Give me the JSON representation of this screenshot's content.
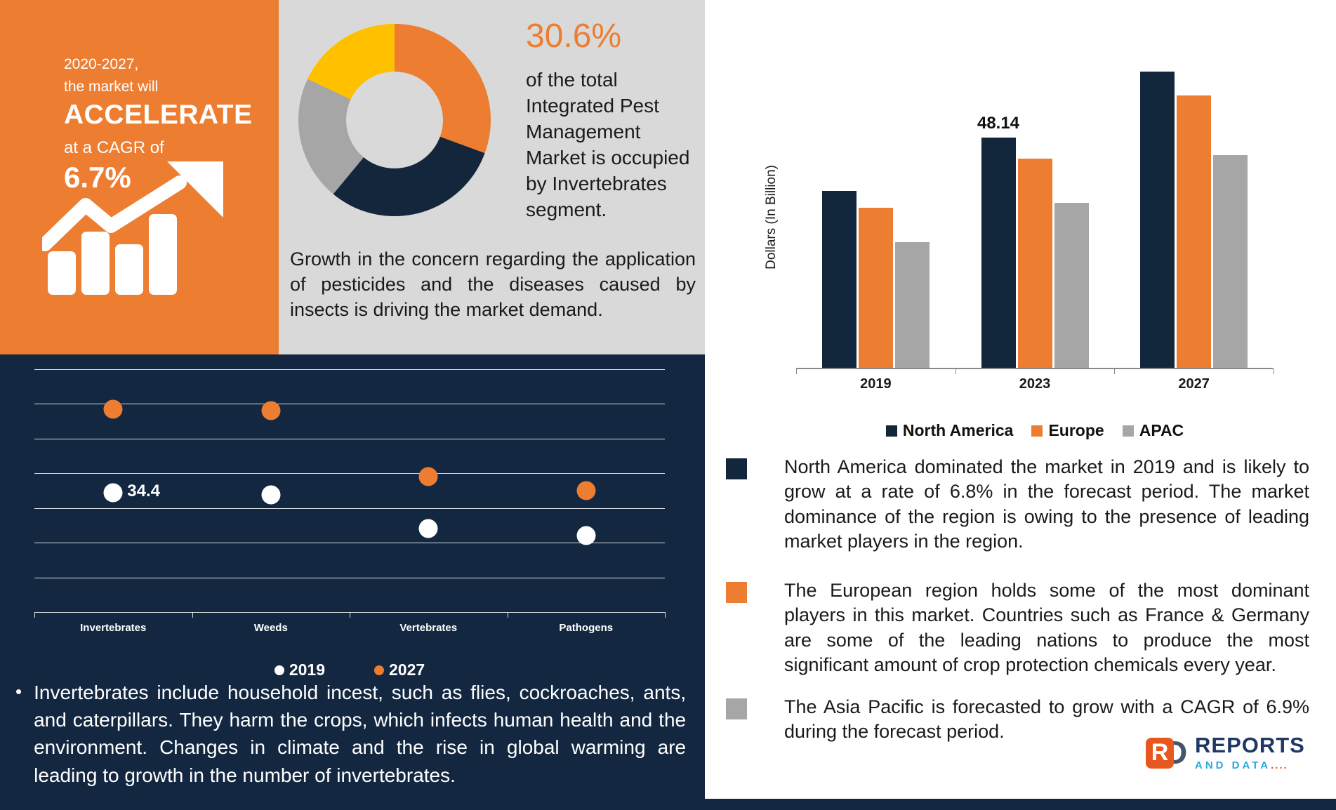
{
  "colors": {
    "orange": "#ED7D31",
    "navy": "#132741",
    "bar_navy": "#12263C",
    "gray": "#A6A6A6",
    "yellow": "#FFC000",
    "panel_gray": "#D9D9D9",
    "white": "#FFFFFF"
  },
  "accelerate_panel": {
    "period": "2020-2027,",
    "line2": "the market will",
    "headline": "ACCELERATE",
    "line4": "at a CAGR of",
    "cagr": "6.7%"
  },
  "donut_panel": {
    "stat": "30.6%",
    "caption": "of the total Integrated Pest Management Market is occupied by Invertebrates segment.",
    "paragraph": "Growth in the concern regarding the application of pesticides and the diseases caused by insects is driving the market demand."
  },
  "dot_panel": {
    "bullet_marker": "•",
    "bullet": "Invertebrates include household incest, such as flies, cockroaches, ants, and caterpillars. They harm the crops, which infects human health and the environment. Changes in climate and the rise in global warming are leading to growth in the number of invertebrates."
  },
  "insights": [
    {
      "color": "#12263C",
      "text": "North America dominated the market in 2019 and is likely to grow at a rate of 6.8% in the forecast period. The market dominance of the region is owing to the presence of leading market players in the region."
    },
    {
      "color": "#ED7D31",
      "text": "The European region holds some of the most dominant players in this market. Countries such as France & Germany are some of the leading nations to produce the most significant amount of crop protection chemicals every year."
    },
    {
      "color": "#A6A6A6",
      "text": "The Asia Pacific is forecasted to grow with a CAGR of 6.9% during the forecast period."
    }
  ],
  "logo": {
    "mark_r": "R",
    "mark_d": "D",
    "name": "REPORTS",
    "tagline": "AND DATA",
    "dots": "...."
  },
  "chart_data": [
    {
      "type": "pie",
      "subtype": "donut",
      "labels": [
        "Invertebrates",
        "unlabeled-1",
        "unlabeled-2",
        "unlabeled-3"
      ],
      "values": [
        30.6,
        30.4,
        21,
        18
      ],
      "colors": [
        "#ED7D31",
        "#14263C",
        "#A6A6A6",
        "#FFC000"
      ],
      "highlight_label": "30.6%"
    },
    {
      "type": "scatter",
      "categories": [
        "Invertebrates",
        "Weeds",
        "Vertebrates",
        "Pathogens"
      ],
      "series": [
        {
          "name": "2019",
          "color": "#FFFFFF",
          "values": [
            34.4,
            33.8,
            24,
            22
          ]
        },
        {
          "name": "2027",
          "color": "#ED7D31",
          "values": [
            58.5,
            58,
            39,
            35
          ]
        }
      ],
      "ylim": [
        0,
        70
      ],
      "gridlines": 8,
      "legend_position": "bottom",
      "labeled_point": {
        "series": "2019",
        "category": "Invertebrates",
        "label": "34.4"
      }
    },
    {
      "type": "bar",
      "ylabel": "Dollars (In Billion)",
      "categories": [
        "2019",
        "2023",
        "2027"
      ],
      "series": [
        {
          "name": "North America",
          "color": "#12263C",
          "values": [
            37,
            48.14,
            62
          ]
        },
        {
          "name": "Europe",
          "color": "#ED7D31",
          "values": [
            33.5,
            43.8,
            57
          ]
        },
        {
          "name": "APAC",
          "color": "#A6A6A6",
          "values": [
            26.3,
            34.5,
            44.5
          ]
        }
      ],
      "ylim": [
        0,
        63
      ],
      "legend_position": "bottom",
      "labeled_point": {
        "series": "North America",
        "category": "2023",
        "label": "48.14"
      }
    }
  ]
}
